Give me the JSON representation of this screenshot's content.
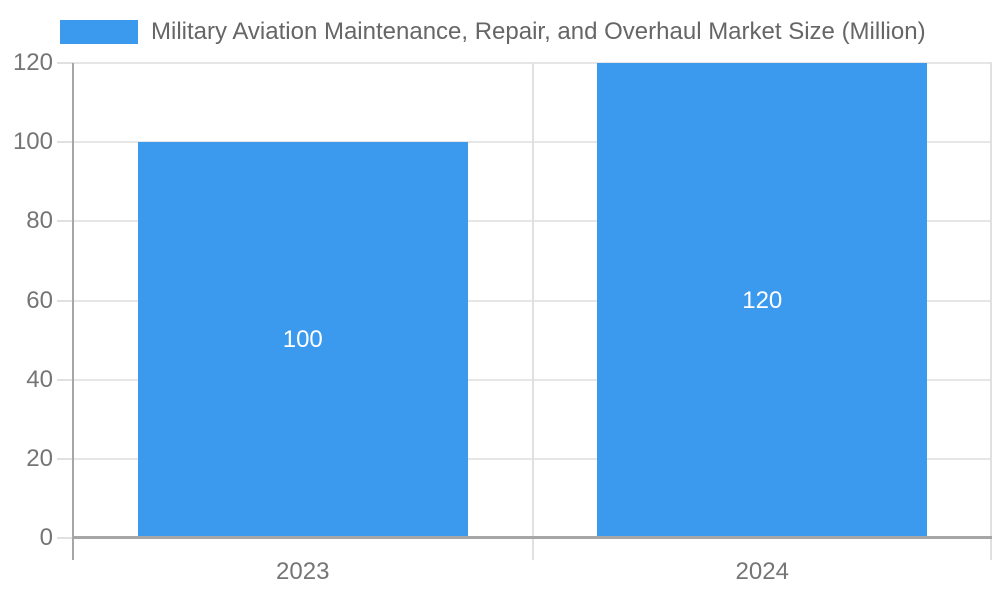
{
  "legend": {
    "label": "Military Aviation Maintenance, Repair, and Overhaul Market Size (Million)",
    "swatch_color": "#3b99ee"
  },
  "chart_data": {
    "type": "bar",
    "title": "Military Aviation Maintenance, Repair, and Overhaul Market Size (Million)",
    "categories": [
      "2023",
      "2024"
    ],
    "series": [
      {
        "name": "Military Aviation Maintenance, Repair, and Overhaul Market Size (Million)",
        "values": [
          100,
          120
        ],
        "color": "#3b99ee"
      }
    ],
    "data_labels": [
      "100",
      "120"
    ],
    "data_label_color": "#ffffff",
    "xlabel": "",
    "ylabel": "",
    "ylim": [
      0,
      120
    ],
    "yticks": [
      0,
      20,
      40,
      60,
      80,
      100,
      120
    ],
    "grid": true,
    "legend_position": "top-left"
  },
  "colors": {
    "bar": "#3b99ee",
    "axis_line": "#a6a6a6",
    "gridline": "#e6e6e6",
    "tick": "#e0e0e0",
    "axis_label_text": "#757575",
    "legend_text": "#666666",
    "background": "#ffffff"
  }
}
